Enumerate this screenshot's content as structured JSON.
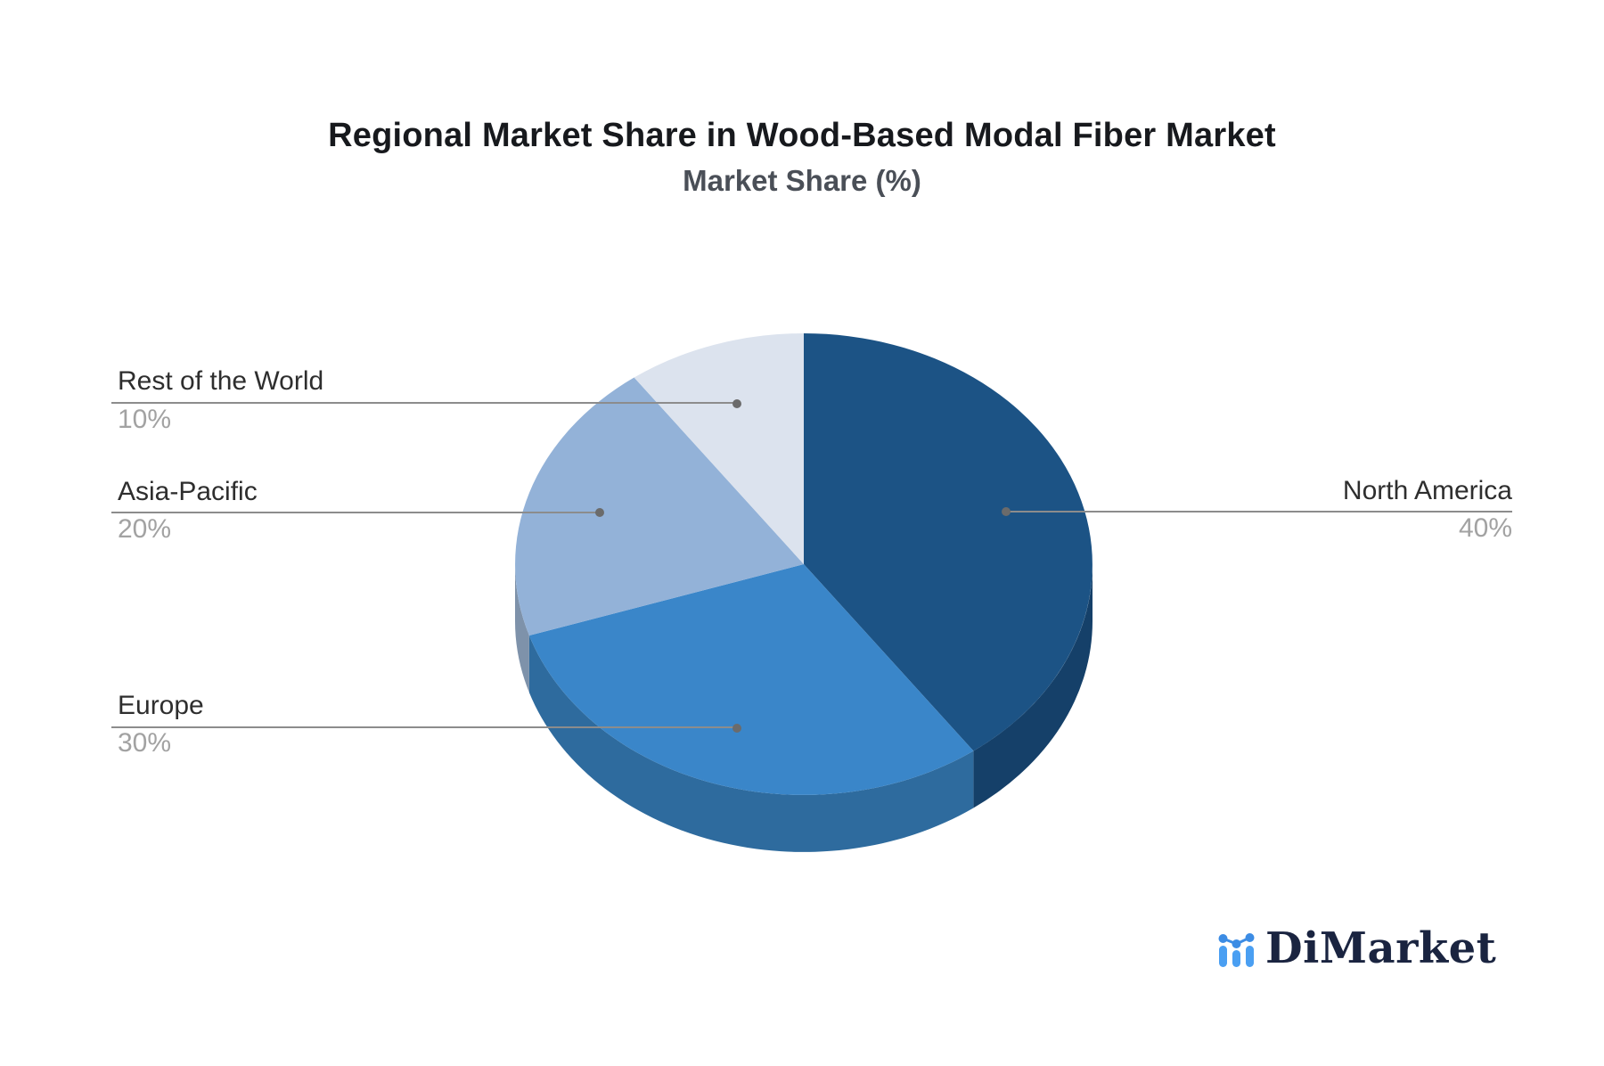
{
  "title": "Regional Market Share in Wood-Based Modal Fiber Market",
  "subtitle": "Market Share (%)",
  "brand": {
    "name": "DiMarket"
  },
  "colors": {
    "leader_line": "#8c8c8c",
    "leader_dot": "#6b6b6b",
    "label_text": "#2e2e2e",
    "percent_text": "#a2a2a2",
    "logo_bar_blue": "#4a9ff2",
    "logo_dot_blue": "#3c8ce4",
    "logo_text_navy": "#1a2440"
  },
  "chart_data": {
    "type": "pie",
    "title": "Regional Market Share in Wood-Based Modal Fiber Market",
    "subtitle": "Market Share (%)",
    "unit": "%",
    "effect": "3d",
    "start_angle_deg_from_top": 0,
    "direction": "clockwise",
    "legend_position": "leader-labels",
    "slices": [
      {
        "label": "North America",
        "value": 40,
        "pct_label": "40%",
        "color": "#1c5385",
        "side_color": "#154069"
      },
      {
        "label": "Europe",
        "value": 30,
        "pct_label": "30%",
        "color": "#3a86c9",
        "side_color": "#2e6b9e"
      },
      {
        "label": "Asia-Pacific",
        "value": 20,
        "pct_label": "20%",
        "color": "#93b2d8",
        "side_color": "#7e92aa"
      },
      {
        "label": "Rest of the World",
        "value": 10,
        "pct_label": "10%",
        "color": "#dce3ee",
        "side_color": "#b9c3d4"
      }
    ]
  }
}
